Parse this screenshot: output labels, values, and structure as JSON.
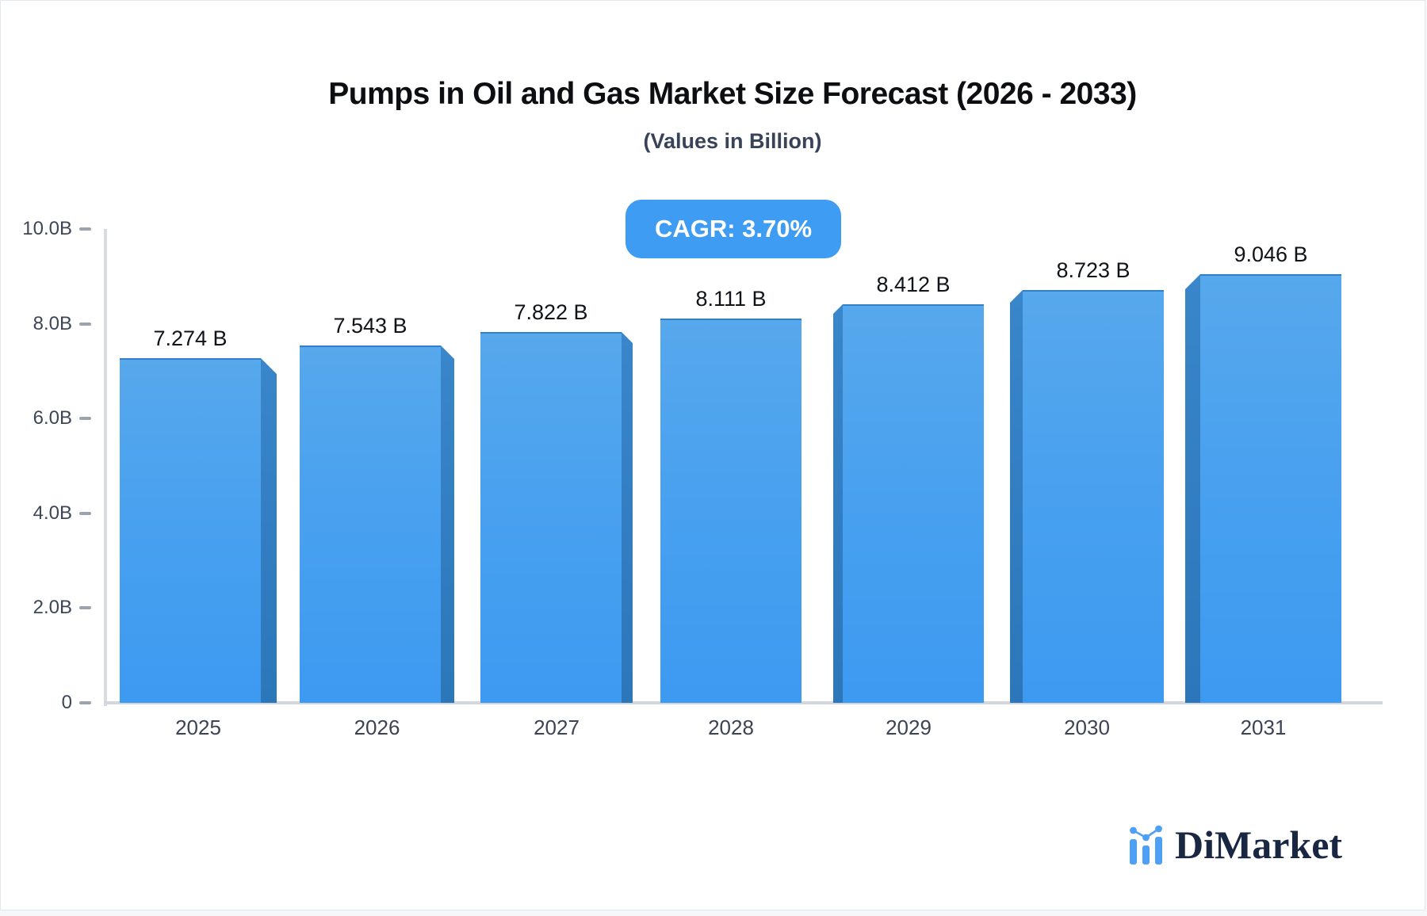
{
  "header": {
    "title": "Pumps in Oil and Gas Market Size Forecast (2026 - 2033)",
    "subtitle": "(Values in Billion)"
  },
  "badge": {
    "label": "CAGR: 3.70%",
    "color": "#3f9cf3"
  },
  "chart_data": {
    "type": "bar",
    "categories": [
      "2025",
      "2026",
      "2027",
      "2028",
      "2029",
      "2030",
      "2031"
    ],
    "values": [
      7.274,
      7.543,
      7.822,
      8.111,
      8.412,
      8.723,
      9.046
    ],
    "value_labels": [
      "7.274 B",
      "7.543 B",
      "7.822 B",
      "8.111 B",
      "8.412 B",
      "8.723 B",
      "9.046 B"
    ],
    "title": "Pumps in Oil and Gas Market Size Forecast (2026 - 2033)",
    "xlabel": "",
    "ylabel": "",
    "ylim": [
      0,
      10
    ],
    "y_tick_values": [
      0,
      2,
      4,
      6,
      8,
      10
    ],
    "y_tick_labels": [
      "0",
      "2.0B",
      "4.0B",
      "6.0B",
      "8.0B",
      "10.0B"
    ],
    "grid": false,
    "legend": "none",
    "bar_color": "#3e9cf2",
    "bar_side_color": "#2e7bc0",
    "bar_style": "3d-extruded, perspective toward center"
  },
  "branding": {
    "logo_text": "DiMarket",
    "logo_icon": "mini-bar-chart-icon",
    "logo_text_color": "#1a2742",
    "logo_icon_color": "#4da0f5"
  }
}
